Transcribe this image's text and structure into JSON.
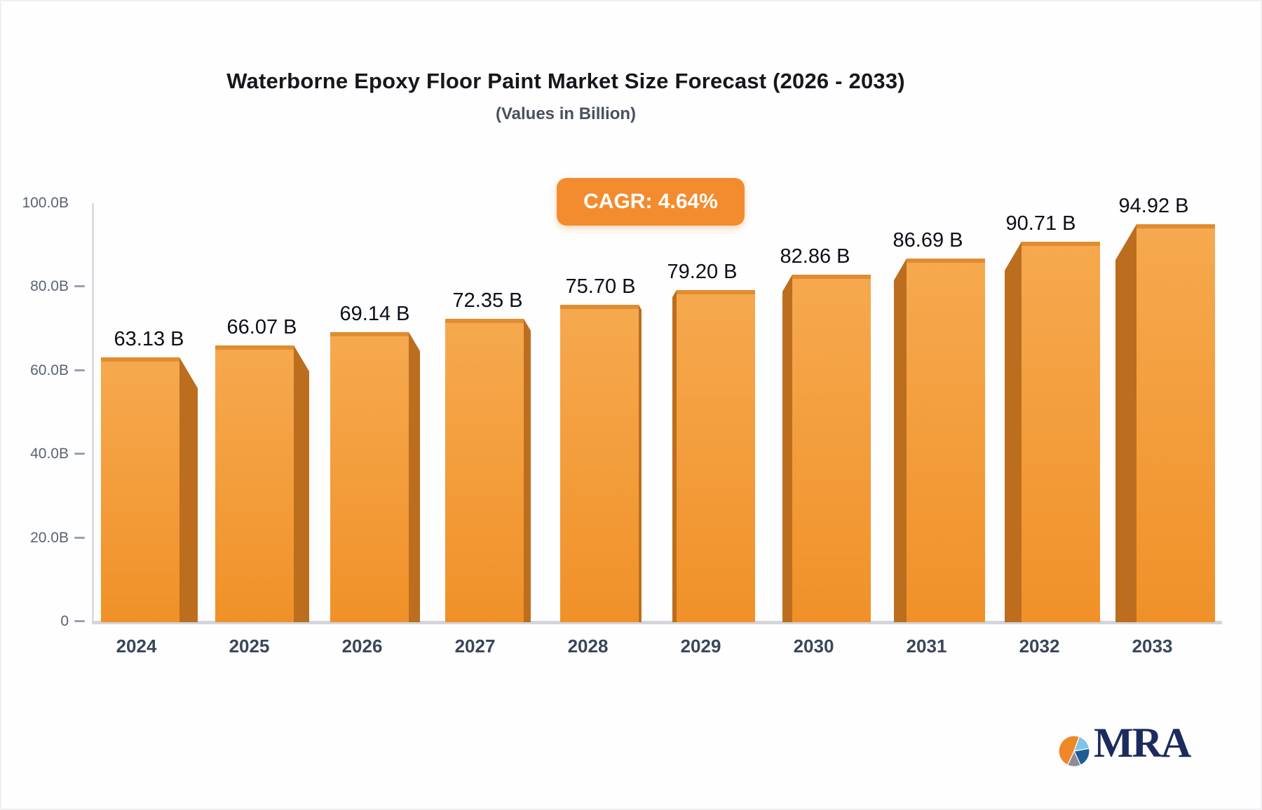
{
  "header": {
    "title": "Waterborne Epoxy Floor Paint Market Size Forecast (2026 - 2033)",
    "subtitle": "(Values in Billion)"
  },
  "badge": {
    "label": "CAGR: 4.64%",
    "bg_color": "#F28C2E",
    "text_color": "#FFFFFF"
  },
  "chart_data": {
    "type": "bar",
    "title": "Waterborne Epoxy Floor Paint Market Size Forecast (2026 - 2033)",
    "subtitle": "(Values in Billion)",
    "annotation": "CAGR: 4.64%",
    "categories": [
      "2024",
      "2025",
      "2026",
      "2027",
      "2028",
      "2029",
      "2030",
      "2031",
      "2032",
      "2033"
    ],
    "values": [
      63.13,
      66.07,
      69.14,
      72.35,
      75.7,
      79.2,
      82.86,
      86.69,
      90.71,
      94.92
    ],
    "value_labels": [
      "63.13 B",
      "66.07 B",
      "69.14 B",
      "72.35 B",
      "75.70 B",
      "79.20 B",
      "82.86 B",
      "86.69 B",
      "90.71 B",
      "94.92 B"
    ],
    "unit": "Billion",
    "xlabel": "",
    "ylabel": "",
    "ylim": [
      0,
      100
    ],
    "y_ticks": [
      {
        "label": "0",
        "value": 0
      },
      {
        "label": "20.0B",
        "value": 20
      },
      {
        "label": "40.0B",
        "value": 40
      },
      {
        "label": "60.0B",
        "value": 60
      },
      {
        "label": "80.0B",
        "value": 80
      },
      {
        "label": "100.0B",
        "value": 100
      }
    ],
    "grid": false,
    "legend": false
  },
  "colors": {
    "bar_face_top": "#F6A94F",
    "bar_face_bottom": "#F09128",
    "bar_top_strip": "#E08C30",
    "bar_side": "#BC6E1E",
    "axis_line": "#DBDCE2",
    "baseline": "#D3D5DB",
    "tick_dash": "#9AA1AD",
    "y_label": "#5A6372",
    "x_label": "#3A4659",
    "value_label": "#0B0F17",
    "badge_bg": "#F28C2E"
  },
  "logo": {
    "text": "MRA",
    "text_color": "#1C2B5E",
    "pie_slices": [
      {
        "name": "orange-slice",
        "color": "#EF8829",
        "start": 205,
        "end": 380
      },
      {
        "name": "light-blue-slice",
        "color": "#7FC3E8",
        "start": 20,
        "end": 80
      },
      {
        "name": "dark-blue-slice",
        "color": "#1F5C94",
        "start": 80,
        "end": 155
      },
      {
        "name": "gray-slice",
        "color": "#8E8D95",
        "start": 155,
        "end": 205
      }
    ]
  }
}
